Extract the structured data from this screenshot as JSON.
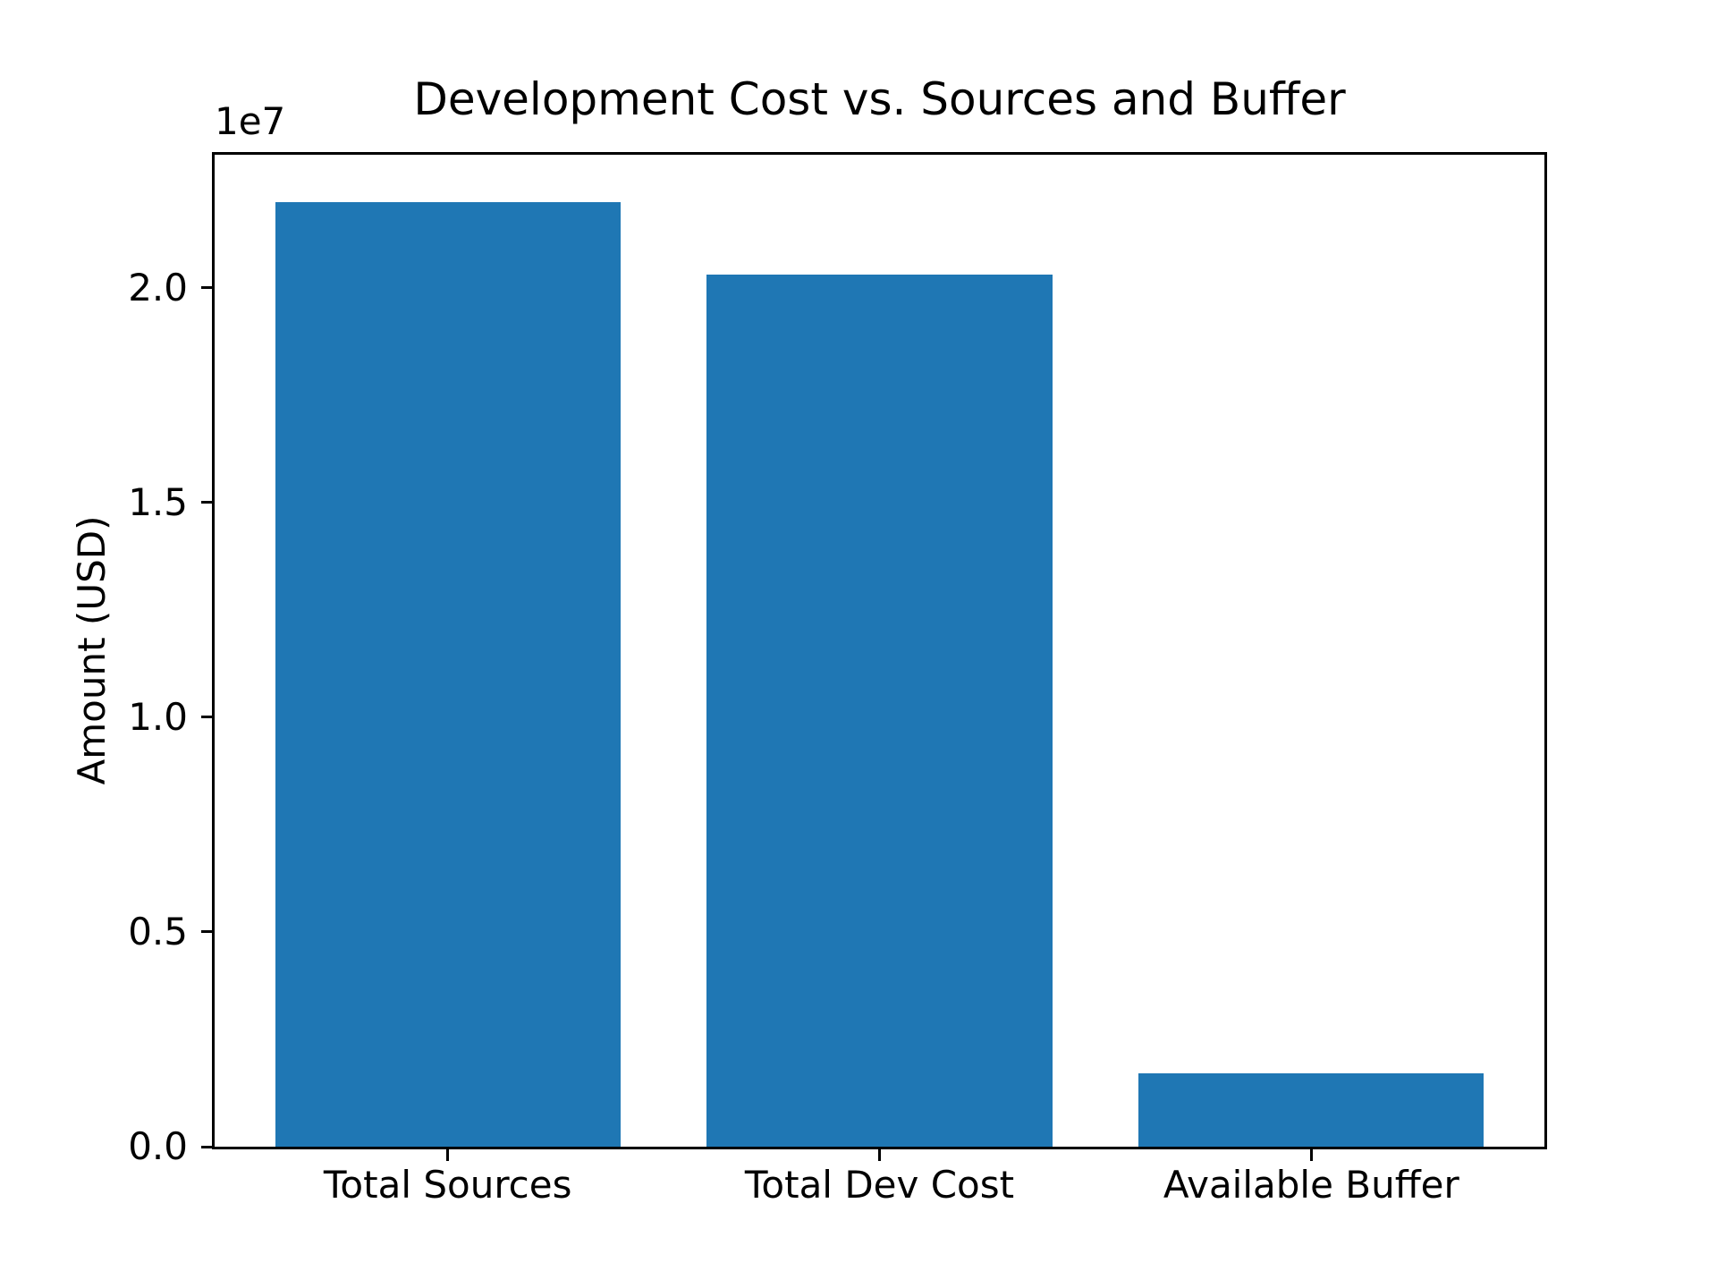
{
  "chart_data": {
    "type": "bar",
    "title": "Development Cost vs. Sources and Buffer",
    "xlabel": "",
    "ylabel": "Amount (USD)",
    "offset_text": "1e7",
    "categories": [
      "Total Sources",
      "Total Dev Cost",
      "Available Buffer"
    ],
    "values": [
      22000000,
      20300000,
      1700000
    ],
    "ylim": [
      0,
      23100000
    ],
    "yticks": [
      0,
      5000000,
      10000000,
      15000000,
      20000000
    ],
    "ytick_labels": [
      "0.0",
      "0.5",
      "1.0",
      "1.5",
      "2.0"
    ],
    "bar_color": "#1f77b4",
    "axis_color": "#000000",
    "grid": false,
    "legend": null
  }
}
